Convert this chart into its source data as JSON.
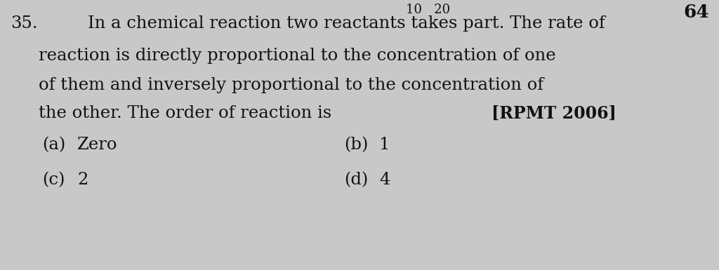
{
  "background_color": "#c8c8c8",
  "question_number": "35.",
  "page_number": "64",
  "top_label": "10   20",
  "line1": "In a chemical reaction two reactants takes part. The rate of",
  "line2": "reaction is directly proportional to the concentration of one",
  "line3": "of them and inversely proportional to the concentration of",
  "line4": "the other. The order of reaction is",
  "reference": "[RPMT 2006]",
  "option_a_label": "(a)",
  "option_a_text": "Zero",
  "option_b_label": "(b)",
  "option_b_text": "1",
  "option_c_label": "(c)",
  "option_c_text": "2",
  "option_d_label": "(d)",
  "option_d_text": "4",
  "fs_body": 17.5,
  "fs_page": 19,
  "fs_ref": 17,
  "text_color": "#111111",
  "font_family": "DejaVu Serif"
}
